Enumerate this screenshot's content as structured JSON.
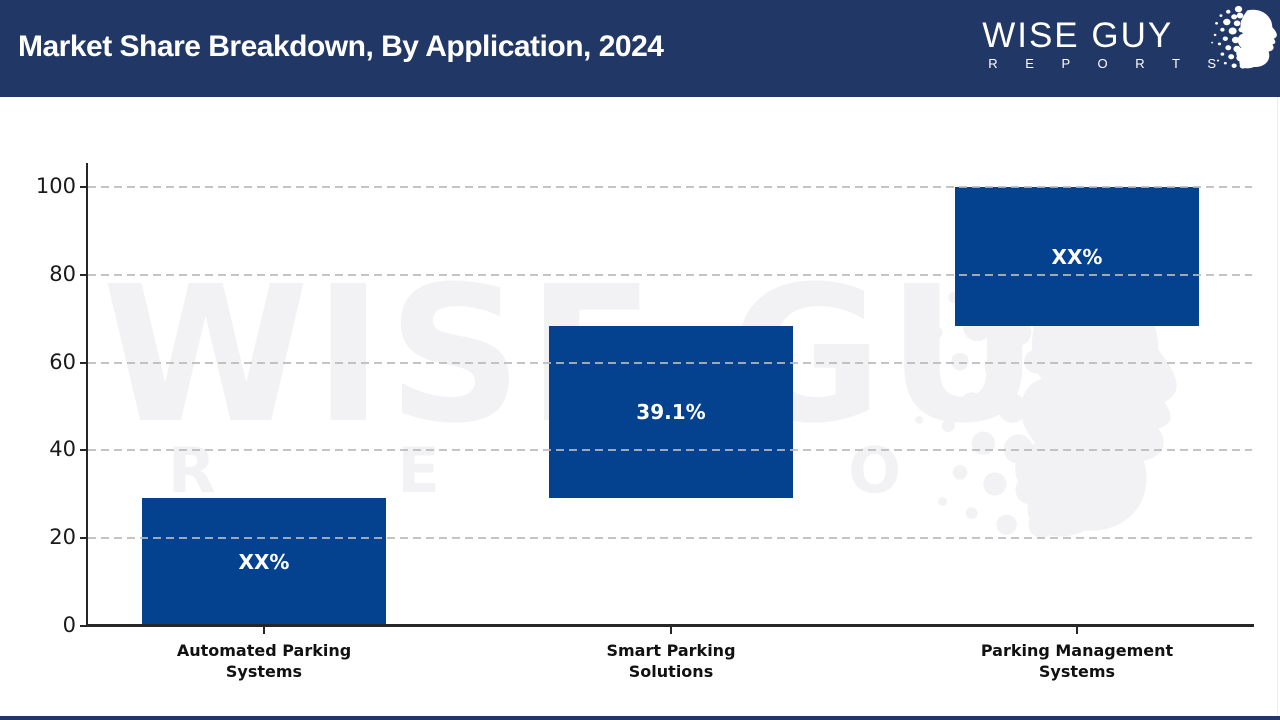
{
  "header": {
    "title": "Market Share Breakdown, By Application, 2024",
    "logo": {
      "wordmark": "WISE GUY",
      "subtext": "R E P O R T S"
    }
  },
  "watermark": {
    "wordmark": "WISE GUY",
    "subtext": "R E P O R T S"
  },
  "chart_data": {
    "type": "bar",
    "subtype": "waterfall-stacked-breakdown",
    "title": "Market Share Breakdown, By Application, 2024",
    "categories": [
      "Automated Parking\nSystems",
      "Smart Parking\nSolutions",
      "Parking Management\nSystems"
    ],
    "values": [
      29.2,
      39.1,
      31.7
    ],
    "segments": [
      {
        "category": "Automated Parking Systems",
        "start": 0,
        "end": 29.2,
        "label": "XX%"
      },
      {
        "category": "Smart Parking Solutions",
        "start": 29.2,
        "end": 68.3,
        "label": "39.1%"
      },
      {
        "category": "Parking Management Systems",
        "start": 68.3,
        "end": 100,
        "label": "XX%"
      }
    ],
    "ylim": [
      0,
      100
    ],
    "yticks": [
      0,
      20,
      40,
      60,
      80,
      100
    ],
    "grid": "horizontal dashed, drawn above bars",
    "legend": "none",
    "colors": {
      "bar": "#04418f",
      "bar_label": "#ffffff",
      "header_bg": "#213765",
      "axis": "#262626",
      "gridline": "#c9c9c9",
      "watermark": "#f2f2f4"
    }
  }
}
